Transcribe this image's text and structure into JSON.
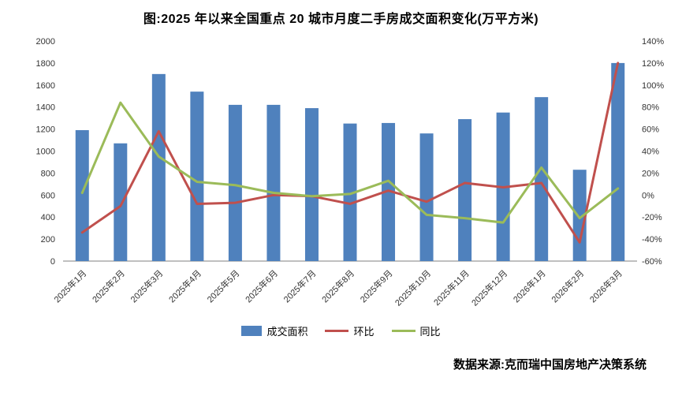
{
  "title": "图:2025 年以来全国重点 20 城市月度二手房成交面积变化(万平方米)",
  "source": "数据来源:克而瑞中国房地产决策系统",
  "legend": [
    {
      "label": "成交面积",
      "type": "bar",
      "color": "#4F81BD"
    },
    {
      "label": "环比",
      "type": "line",
      "color": "#C0504D"
    },
    {
      "label": "同比",
      "type": "line",
      "color": "#9BBB59"
    }
  ],
  "chart_data": {
    "type": "combo",
    "title": "图:2025 年以来全国重点 20 城市月度二手房成交面积变化(万平方米)",
    "categories": [
      "2025年1月",
      "2025年2月",
      "2025年3月",
      "2025年4月",
      "2025年5月",
      "2025年6月",
      "2025年7月",
      "2025年8月",
      "2025年9月",
      "2025年10月",
      "2025年11月",
      "2025年12月",
      "2026年1月",
      "2026年2月",
      "2026年3月"
    ],
    "series": [
      {
        "name": "成交面积",
        "type": "bar",
        "axis": "left",
        "color": "#4F81BD",
        "values": [
          1190,
          1070,
          1700,
          1540,
          1420,
          1420,
          1390,
          1250,
          1255,
          1160,
          1290,
          1350,
          1490,
          830,
          1800
        ]
      },
      {
        "name": "环比",
        "type": "line",
        "axis": "right",
        "color": "#C0504D",
        "values": [
          -34,
          -10,
          58,
          -8,
          -7,
          0,
          -1,
          -8,
          4,
          -6,
          11,
          7,
          11,
          -43,
          120
        ]
      },
      {
        "name": "同比",
        "type": "line",
        "axis": "right",
        "color": "#9BBB59",
        "values": [
          2,
          84,
          35,
          12,
          9,
          2,
          -1,
          1,
          13,
          -18,
          -21,
          -25,
          25,
          -21,
          6
        ]
      }
    ],
    "left_axis": {
      "min": 0,
      "max": 2000,
      "step": 200
    },
    "right_axis": {
      "min": -60,
      "max": 140,
      "step": 20,
      "suffix": "%"
    },
    "grid": false,
    "legend_position": "bottom"
  }
}
